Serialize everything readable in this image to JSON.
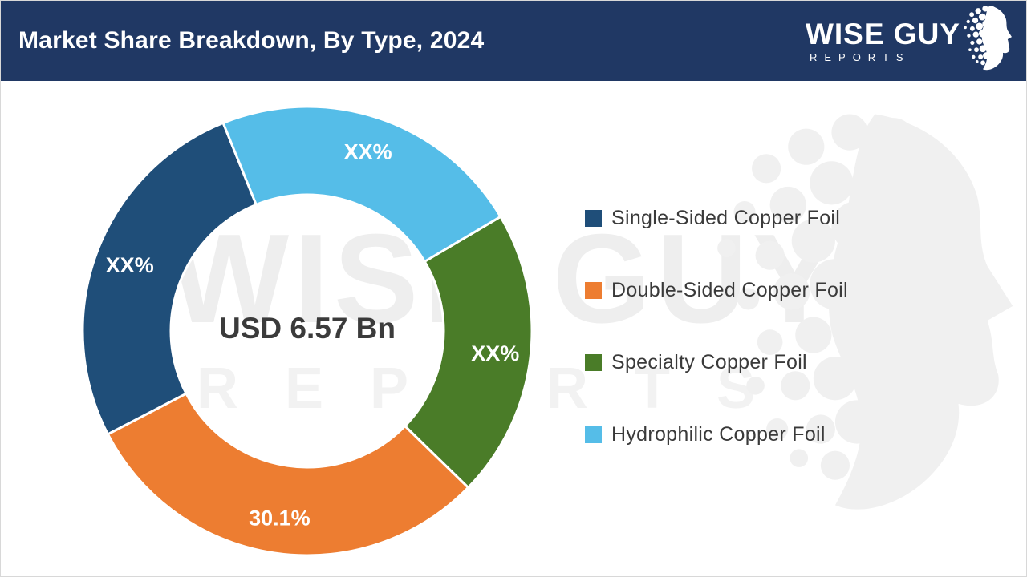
{
  "header": {
    "title": "Market Share Breakdown, By Type, 2024",
    "background_color": "#203864",
    "logo": {
      "name": "WISE GUY",
      "subtitle": "REPORTS"
    }
  },
  "chart_data": {
    "type": "pie",
    "subtype": "donut",
    "title": "Market Share Breakdown, By Type, 2024",
    "center_label": "USD 6.57 Bn",
    "legend_position": "right",
    "start_angle_deg": 112,
    "values_are_percent": true,
    "segments": [
      {
        "name": "Single-Sided Copper Foil",
        "label": "XX%",
        "value_pct": 26.5,
        "color": "#1F4E79"
      },
      {
        "name": "Double-Sided Copper Foil",
        "label": "30.1%",
        "value_pct": 30.1,
        "color": "#ED7D31"
      },
      {
        "name": "Specialty Copper Foil",
        "label": "XX%",
        "value_pct": 20.8,
        "color": "#4A7C28"
      },
      {
        "name": "Hydrophilic Copper Foil",
        "label": "XX%",
        "value_pct": 22.6,
        "color": "#55BDE8"
      }
    ]
  },
  "watermark": {
    "line1": "WISE GUY",
    "line2": "REPORTS"
  }
}
